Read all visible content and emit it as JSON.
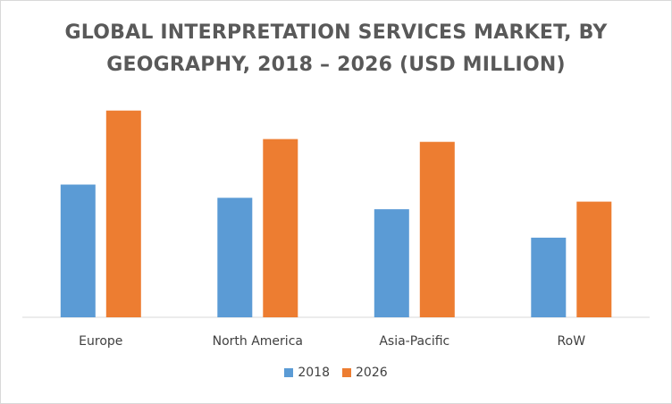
{
  "chart_data": {
    "type": "bar",
    "title_line1": "GLOBAL INTERPRETATION SERVICES MARKET, BY",
    "title_line2": "GEOGRAPHY, 2018 – 2026 (USD MILLION)",
    "categories": [
      "Europe",
      "North America",
      "Asia-Pacific",
      "RoW"
    ],
    "series": [
      {
        "name": "2018",
        "color": "#5B9BD5",
        "values": [
          140,
          126,
          114,
          84
        ]
      },
      {
        "name": "2026",
        "color": "#ED7D31",
        "values": [
          218,
          188,
          185,
          122
        ]
      }
    ],
    "xlabel": "",
    "ylabel": "",
    "ylim": [
      0,
      230
    ],
    "grid": false,
    "y_axis_labels_shown": false,
    "legend_position": "bottom"
  }
}
